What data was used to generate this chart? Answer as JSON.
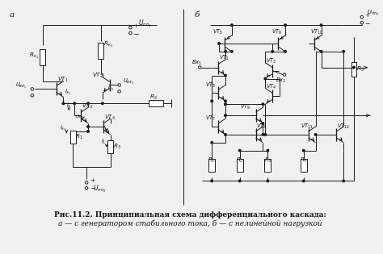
{
  "title": "Рис.11.2. Принципиальная схема дифференциального каскада:",
  "subtitle": "а — с генератором стабильного тока, б — с нелинейной нагрузкой",
  "bg_color": "#f0f0f0",
  "line_color": "#1a1a1a",
  "lw": 0.7
}
